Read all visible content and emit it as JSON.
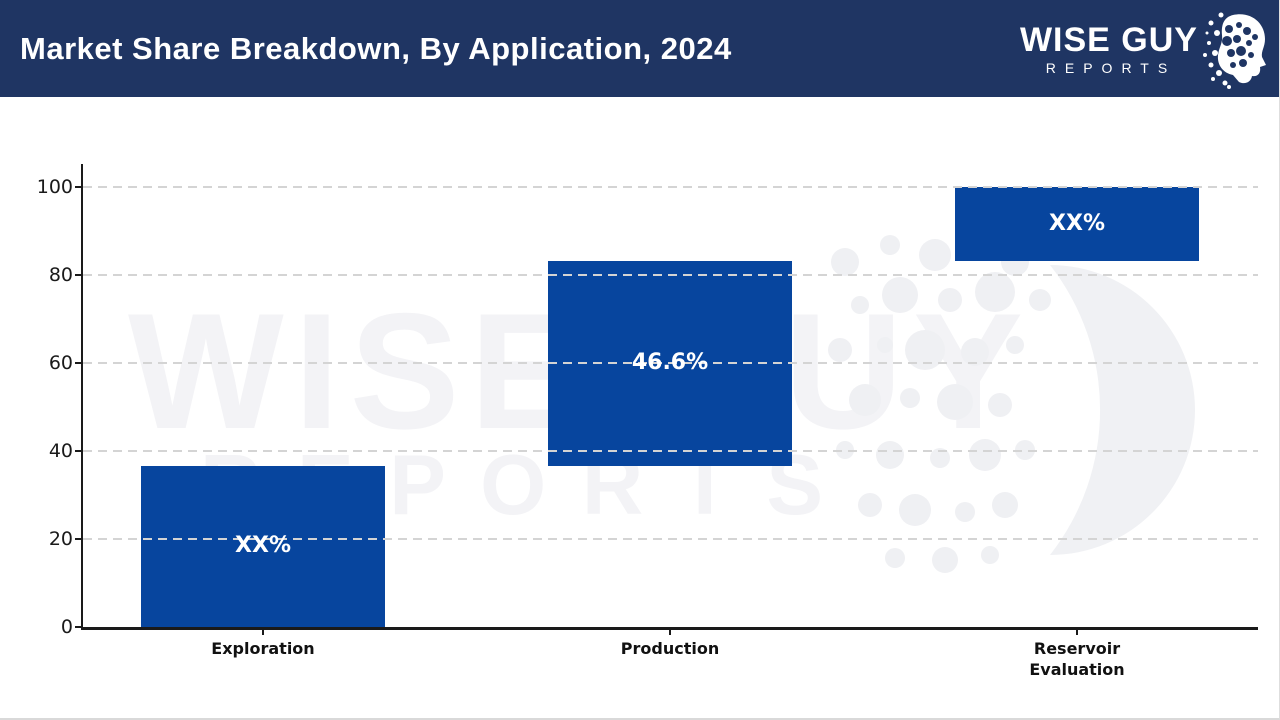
{
  "header": {
    "title": "Market Share Breakdown, By Application, 2024",
    "background_color": "#1f3563",
    "logo": {
      "line1": "WISE GUY",
      "line2": "REPORTS",
      "head_icon": "dotted-face-profile-icon"
    }
  },
  "watermark": {
    "line1": "WISE GUY",
    "line2": "R E P O R T S"
  },
  "chart_data": {
    "type": "bar",
    "subtype": "waterfall",
    "title": "Market Share Breakdown, By Application, 2024",
    "categories": [
      "Exploration",
      "Production",
      "Reservoir Evaluation"
    ],
    "tick_labels": [
      "Exploration",
      "Production",
      "Reservoir\nEvaluation"
    ],
    "segments": [
      {
        "category": "Exploration",
        "start": 0,
        "end": 36.6,
        "label": "XX%"
      },
      {
        "category": "Production",
        "start": 36.6,
        "end": 83.2,
        "label": "46.6%"
      },
      {
        "category": "Reservoir Evaluation",
        "start": 83.2,
        "end": 100,
        "label": "XX%"
      }
    ],
    "ylim": [
      0,
      100
    ],
    "yticks": [
      0,
      20,
      40,
      60,
      80,
      100
    ],
    "xlabel": "",
    "ylabel": "",
    "grid": "horizontal-dashed",
    "legend": "none",
    "bar_color": "#07459e",
    "label_color": "#ffffff",
    "axis_color": "#1a1a1a",
    "gridline_color": "#d4d4d4"
  }
}
